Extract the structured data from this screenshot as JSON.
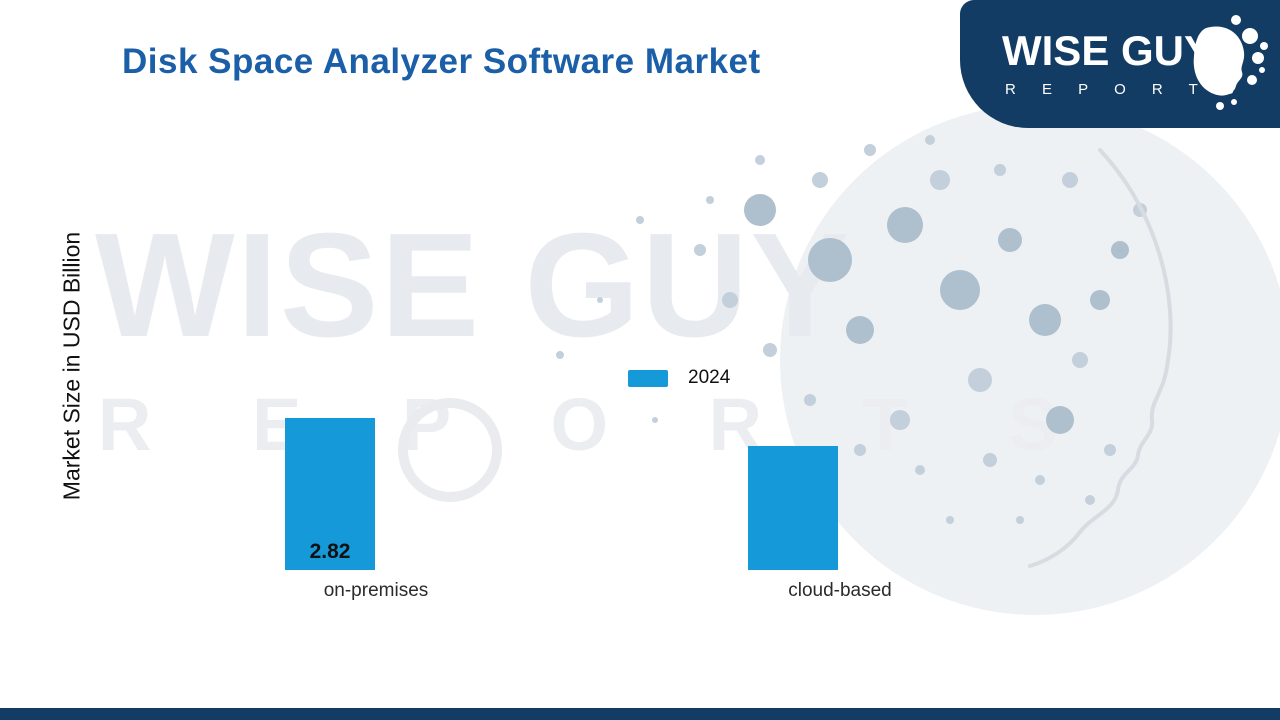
{
  "title": "Disk Space Analyzer Software Market",
  "y_axis_label": "Market Size in USD Billion",
  "legend": {
    "label": "2024"
  },
  "bars": [
    {
      "category": "on-premises",
      "value_label": "2.82"
    },
    {
      "category": "cloud-based",
      "value_label": ""
    }
  ],
  "watermark": {
    "line1": "WISE GUY",
    "line2": "R E P O R T S"
  },
  "logo": {
    "line1": "WISE GUY",
    "line2": "R E P O R T S"
  },
  "colors": {
    "bar": "#1699d8",
    "navy": "#123c63",
    "title_blue": "#1b5fa8",
    "watermark_gray": "#e7eaee"
  },
  "chart_data": {
    "type": "bar",
    "title": "Disk Space Analyzer Software Market",
    "xlabel": "",
    "ylabel": "Market Size in USD Billion",
    "categories": [
      "on-premises",
      "cloud-based"
    ],
    "series": [
      {
        "name": "2024",
        "values": [
          2.82,
          2.3
        ]
      }
    ],
    "value_labels": [
      "2.82",
      ""
    ],
    "ylim": [
      0,
      3
    ],
    "grid": false,
    "legend_position": "top-center",
    "bar_color": "#1699d8"
  }
}
